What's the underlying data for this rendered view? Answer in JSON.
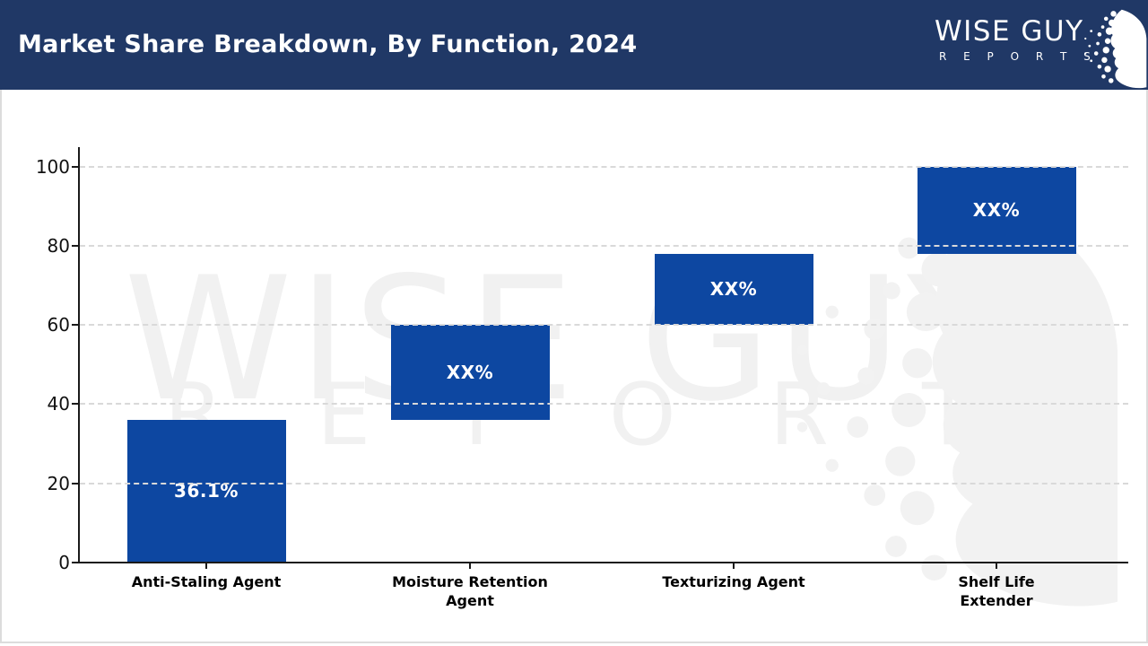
{
  "header": {
    "title": "Market Share Breakdown, By Function, 2024",
    "logo": {
      "line1": "WISE GUY",
      "line2": "R E P O R T S"
    },
    "background_color": "#203866"
  },
  "watermark": {
    "line1": "WISE GUY",
    "line2": "R E P O R T S"
  },
  "chart_data": {
    "type": "bar",
    "subtype": "waterfall",
    "title": "Market Share Breakdown, By Function, 2024",
    "categories": [
      "Anti-Staling Agent",
      "Moisture Retention\nAgent",
      "Texturizing Agent",
      "Shelf Life\nExtender"
    ],
    "segments": [
      {
        "category": "Anti-Staling Agent",
        "start": 0,
        "end": 36.1,
        "label": "36.1%"
      },
      {
        "category": "Moisture Retention Agent",
        "start": 36.1,
        "end": 60,
        "label": "XX%"
      },
      {
        "category": "Texturizing Agent",
        "start": 60,
        "end": 78,
        "label": "XX%"
      },
      {
        "category": "Shelf Life Extender",
        "start": 78,
        "end": 100,
        "label": "XX%"
      }
    ],
    "yticks": [
      0,
      20,
      40,
      60,
      80,
      100
    ],
    "ylim": [
      0,
      105
    ],
    "xlabel": "",
    "ylabel": "",
    "grid": "horizontal-dashed",
    "legend": "none",
    "colors": {
      "bar_fill": "#0d47a1",
      "bar_label_text": "#ffffff",
      "gridline": "#d9d9d9",
      "axis": "#1a1a1a",
      "watermark": "#f1f1f1"
    }
  }
}
